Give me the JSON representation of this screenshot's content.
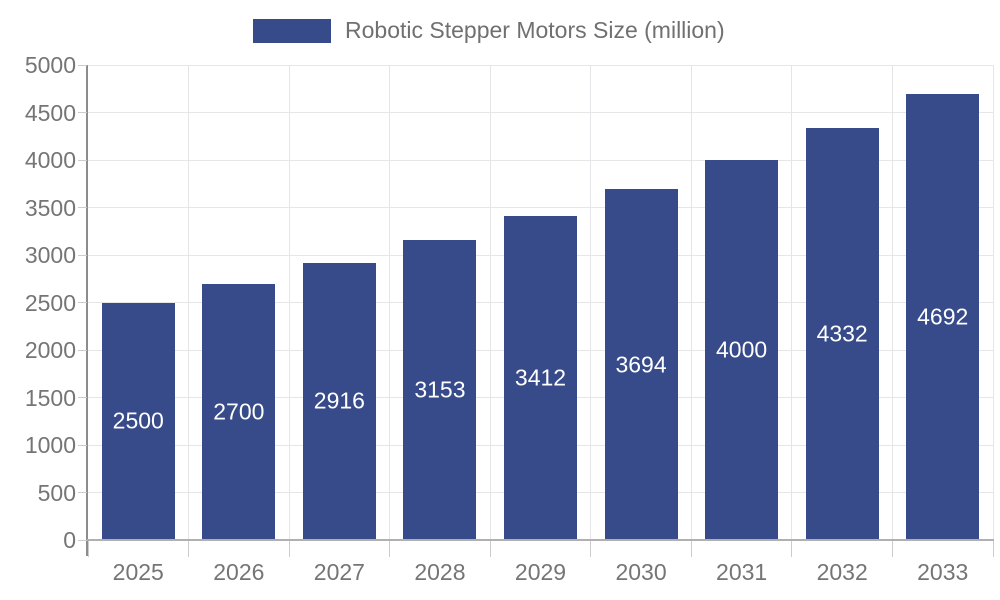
{
  "chart_data": {
    "type": "bar",
    "title": "",
    "legend": {
      "label": "Robotic Stepper Motors Size (million)",
      "position": "top",
      "swatch_color": "#374a89"
    },
    "categories": [
      "2025",
      "2026",
      "2027",
      "2028",
      "2029",
      "2030",
      "2031",
      "2032",
      "2033"
    ],
    "series": [
      {
        "name": "Robotic Stepper Motors Size (million)",
        "values": [
          2500,
          2700,
          2916,
          3153,
          3412,
          3694,
          4000,
          4332,
          4692
        ]
      }
    ],
    "xlabel": "",
    "ylabel": "",
    "ylim": [
      0,
      5000
    ],
    "ytick_step": 500,
    "yticks": [
      0,
      500,
      1000,
      1500,
      2000,
      2500,
      3000,
      3500,
      4000,
      4500,
      5000
    ],
    "grid": true,
    "data_labels": "inside-center-white",
    "colors": {
      "bar": "#374a89",
      "bar_label_text": "#ffffff",
      "axis_text": "#757575",
      "legend_text": "#707070",
      "gridline": "#e6e6e6",
      "y_axis_line": "#8c8c8c",
      "x_axis_line": "#b0b0b0",
      "tick": "#cccccc",
      "background": "#ffffff"
    }
  }
}
